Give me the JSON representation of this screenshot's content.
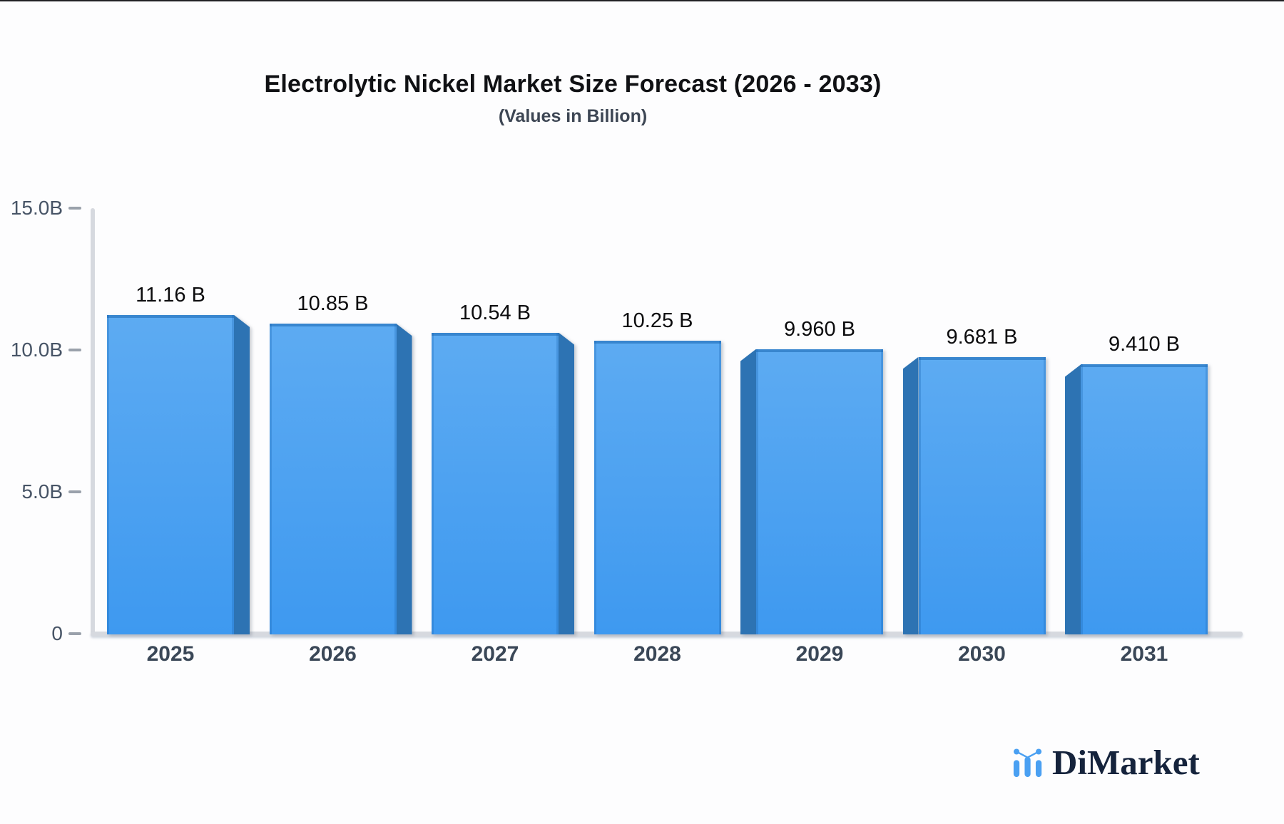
{
  "header": {
    "title": "Electrolytic Nickel Market Size Forecast (2026 - 2033)",
    "subtitle": "(Values in Billion)"
  },
  "chart_data": {
    "type": "bar",
    "title": "Electrolytic Nickel Market Size Forecast (2026 - 2033)",
    "subtitle": "(Values in Billion)",
    "categories": [
      "2025",
      "2026",
      "2027",
      "2028",
      "2029",
      "2030",
      "2031"
    ],
    "values": [
      11.16,
      10.85,
      10.54,
      10.25,
      9.96,
      9.681,
      9.41
    ],
    "value_labels": [
      "11.16 B",
      "10.85 B",
      "10.54 B",
      "10.25 B",
      "9.960 B",
      "9.681 B",
      "9.410 B"
    ],
    "ylim": [
      0,
      15
    ],
    "yticks": [
      {
        "value": 15,
        "label": "15.0B"
      },
      {
        "value": 10,
        "label": "10.0B"
      },
      {
        "value": 5,
        "label": "5.0B"
      },
      {
        "value": 0,
        "label": "0"
      }
    ],
    "xlabel": "",
    "ylabel": "",
    "grid": false,
    "legend": "none",
    "bar_style": "3d-bevel-center-perspective"
  },
  "colors": {
    "page_bg": "#fdfdfe",
    "top_border": "#202024",
    "bar_face_top": "#5dabf2",
    "bar_face_bottom": "#3e99f0",
    "bar_side": "#2d73b3",
    "axis": "#d6d9df",
    "tick_dash": "#9aa1ab",
    "tick_label": "#475466",
    "x_label": "#3a4757",
    "value_label": "#0c0c0e",
    "title": "#101114",
    "subtitle": "#3d4654",
    "logo_text": "#15233c",
    "logo_icon": "#4aa0f2"
  },
  "logo": {
    "text": "DiMarket",
    "icon": "bar-line-chart-icon"
  }
}
